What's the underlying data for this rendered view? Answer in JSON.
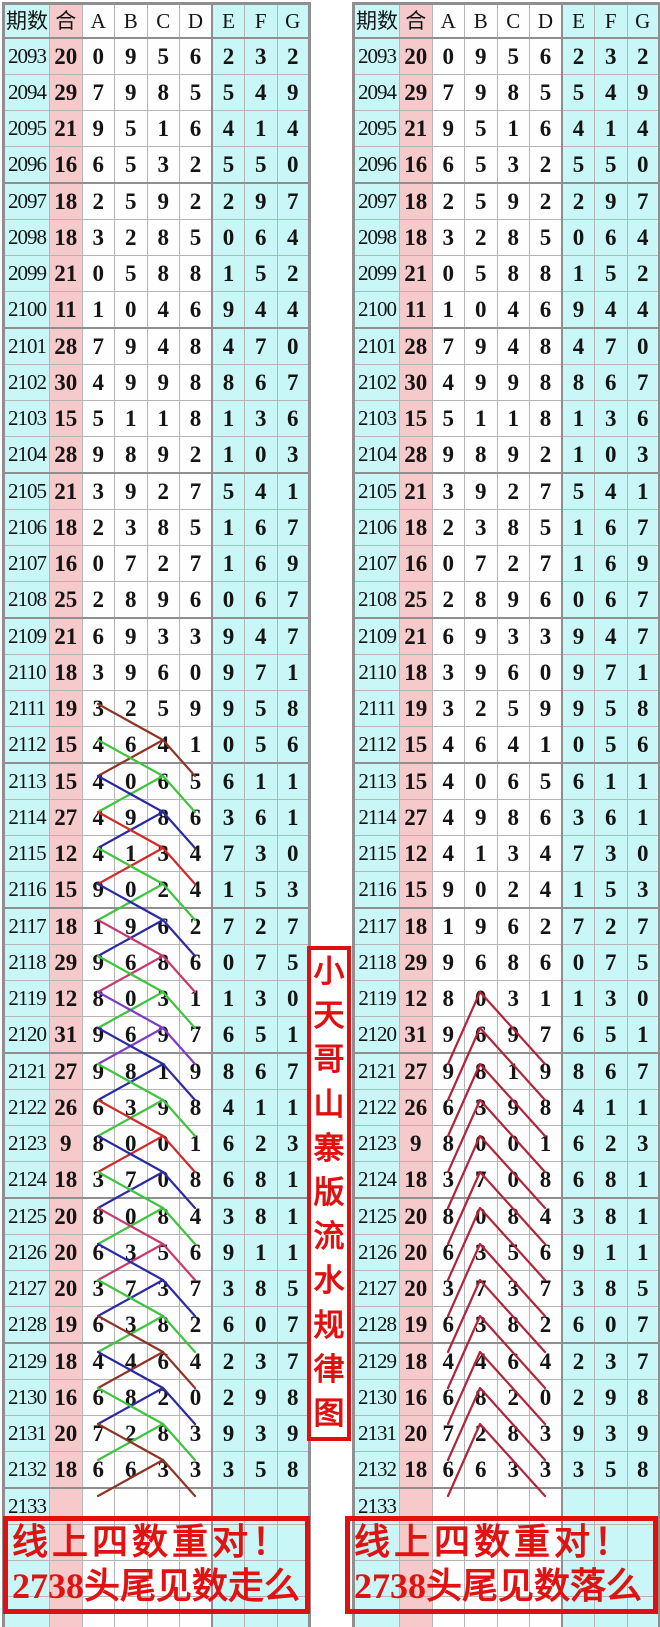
{
  "table": {
    "headers": [
      "期数",
      "合",
      "A",
      "B",
      "C",
      "D",
      "E",
      "F",
      "G"
    ],
    "rows": [
      [
        "2093",
        "20",
        "0",
        "9",
        "5",
        "6",
        "2",
        "3",
        "2"
      ],
      [
        "2094",
        "29",
        "7",
        "9",
        "8",
        "5",
        "5",
        "4",
        "9"
      ],
      [
        "2095",
        "21",
        "9",
        "5",
        "1",
        "6",
        "4",
        "1",
        "4"
      ],
      [
        "2096",
        "16",
        "6",
        "5",
        "3",
        "2",
        "5",
        "5",
        "0"
      ],
      [
        "2097",
        "18",
        "2",
        "5",
        "9",
        "2",
        "2",
        "9",
        "7"
      ],
      [
        "2098",
        "18",
        "3",
        "2",
        "8",
        "5",
        "0",
        "6",
        "4"
      ],
      [
        "2099",
        "21",
        "0",
        "5",
        "8",
        "8",
        "1",
        "5",
        "2"
      ],
      [
        "2100",
        "11",
        "1",
        "0",
        "4",
        "6",
        "9",
        "4",
        "4"
      ],
      [
        "2101",
        "28",
        "7",
        "9",
        "4",
        "8",
        "4",
        "7",
        "0"
      ],
      [
        "2102",
        "30",
        "4",
        "9",
        "9",
        "8",
        "8",
        "6",
        "7"
      ],
      [
        "2103",
        "15",
        "5",
        "1",
        "1",
        "8",
        "1",
        "3",
        "6"
      ],
      [
        "2104",
        "28",
        "9",
        "8",
        "9",
        "2",
        "1",
        "0",
        "3"
      ],
      [
        "2105",
        "21",
        "3",
        "9",
        "2",
        "7",
        "5",
        "4",
        "1"
      ],
      [
        "2106",
        "18",
        "2",
        "3",
        "8",
        "5",
        "1",
        "6",
        "7"
      ],
      [
        "2107",
        "16",
        "0",
        "7",
        "2",
        "7",
        "1",
        "6",
        "9"
      ],
      [
        "2108",
        "25",
        "2",
        "8",
        "9",
        "6",
        "0",
        "6",
        "7"
      ],
      [
        "2109",
        "21",
        "6",
        "9",
        "3",
        "3",
        "9",
        "4",
        "7"
      ],
      [
        "2110",
        "18",
        "3",
        "9",
        "6",
        "0",
        "9",
        "7",
        "1"
      ],
      [
        "2111",
        "19",
        "3",
        "2",
        "5",
        "9",
        "9",
        "5",
        "8"
      ],
      [
        "2112",
        "15",
        "4",
        "6",
        "4",
        "1",
        "0",
        "5",
        "6"
      ],
      [
        "2113",
        "15",
        "4",
        "0",
        "6",
        "5",
        "6",
        "1",
        "1"
      ],
      [
        "2114",
        "27",
        "4",
        "9",
        "8",
        "6",
        "3",
        "6",
        "1"
      ],
      [
        "2115",
        "12",
        "4",
        "1",
        "3",
        "4",
        "7",
        "3",
        "0"
      ],
      [
        "2116",
        "15",
        "9",
        "0",
        "2",
        "4",
        "1",
        "5",
        "3"
      ],
      [
        "2117",
        "18",
        "1",
        "9",
        "6",
        "2",
        "7",
        "2",
        "7"
      ],
      [
        "2118",
        "29",
        "9",
        "6",
        "8",
        "6",
        "0",
        "7",
        "5"
      ],
      [
        "2119",
        "12",
        "8",
        "0",
        "3",
        "1",
        "1",
        "3",
        "0"
      ],
      [
        "2120",
        "31",
        "9",
        "6",
        "9",
        "7",
        "6",
        "5",
        "1"
      ],
      [
        "2121",
        "27",
        "9",
        "8",
        "1",
        "9",
        "8",
        "6",
        "7"
      ],
      [
        "2122",
        "26",
        "6",
        "3",
        "9",
        "8",
        "4",
        "1",
        "1"
      ],
      [
        "2123",
        "9",
        "8",
        "0",
        "0",
        "1",
        "6",
        "2",
        "3"
      ],
      [
        "2124",
        "18",
        "3",
        "7",
        "0",
        "8",
        "6",
        "8",
        "1"
      ],
      [
        "2125",
        "20",
        "8",
        "0",
        "8",
        "4",
        "3",
        "8",
        "1"
      ],
      [
        "2126",
        "20",
        "6",
        "3",
        "5",
        "6",
        "9",
        "1",
        "1"
      ],
      [
        "2127",
        "20",
        "3",
        "7",
        "3",
        "7",
        "3",
        "8",
        "5"
      ],
      [
        "2128",
        "19",
        "6",
        "3",
        "8",
        "2",
        "6",
        "0",
        "7"
      ],
      [
        "2129",
        "18",
        "4",
        "4",
        "6",
        "4",
        "2",
        "3",
        "7"
      ],
      [
        "2130",
        "16",
        "6",
        "8",
        "2",
        "0",
        "2",
        "9",
        "8"
      ],
      [
        "2131",
        "20",
        "7",
        "2",
        "8",
        "3",
        "9",
        "3",
        "9"
      ],
      [
        "2132",
        "18",
        "6",
        "6",
        "3",
        "3",
        "3",
        "5",
        "8"
      ],
      [
        "2133",
        "",
        "",
        "",
        "",
        "",
        "",
        "",
        ""
      ]
    ],
    "filler_row_count": 3
  },
  "banner": {
    "text": "小天哥山寨版流水规律图"
  },
  "left_footer": {
    "line1": "线上四数重对！",
    "line2": "2738头尾见数走么"
  },
  "right_footer": {
    "line1": "线上四数重对！",
    "line2": "2738头尾见数落么"
  },
  "colors": {
    "cyan_column": "#c9f6f6",
    "pink_column": "#f6caca",
    "white_column": "#fffefe",
    "grid": "#b5b5b5",
    "grid_heavy": "#8f8f8f",
    "red_accent": "#e01010",
    "line_darkred": "#8e3526",
    "line_green": "#3ec43e",
    "line_navy": "#2a2aa4",
    "line_red": "#d02a2a",
    "line_crimson": "#c8396f",
    "line_purple": "#7e3ac8",
    "line_right_red": "#b22438"
  },
  "left_lines": [
    {
      "c": "#8e3526",
      "pts": [
        [
          2111,
          "A"
        ],
        [
          2112,
          "C"
        ],
        [
          2113,
          "A"
        ]
      ]
    },
    {
      "c": "#8e3526",
      "pts": [
        [
          2112,
          "C"
        ],
        [
          2113,
          "D"
        ]
      ]
    },
    {
      "c": "#3ec43e",
      "pts": [
        [
          2112,
          "A"
        ],
        [
          2113,
          "C"
        ],
        [
          2114,
          "A"
        ]
      ]
    },
    {
      "c": "#3ec43e",
      "pts": [
        [
          2113,
          "C"
        ],
        [
          2114,
          "D"
        ]
      ]
    },
    {
      "c": "#2a2aa4",
      "pts": [
        [
          2113,
          "A"
        ],
        [
          2114,
          "C"
        ],
        [
          2115,
          "A"
        ]
      ]
    },
    {
      "c": "#2a2aa4",
      "pts": [
        [
          2114,
          "C"
        ],
        [
          2115,
          "D"
        ]
      ]
    },
    {
      "c": "#d02a2a",
      "pts": [
        [
          2114,
          "A"
        ],
        [
          2115,
          "C"
        ],
        [
          2116,
          "A"
        ]
      ]
    },
    {
      "c": "#d02a2a",
      "pts": [
        [
          2115,
          "C"
        ],
        [
          2116,
          "D"
        ]
      ]
    },
    {
      "c": "#3ec43e",
      "pts": [
        [
          2115,
          "A"
        ],
        [
          2116,
          "C"
        ],
        [
          2117,
          "A"
        ]
      ]
    },
    {
      "c": "#3ec43e",
      "pts": [
        [
          2116,
          "C"
        ],
        [
          2117,
          "D"
        ]
      ]
    },
    {
      "c": "#2a2aa4",
      "pts": [
        [
          2116,
          "A"
        ],
        [
          2117,
          "C"
        ],
        [
          2118,
          "A"
        ]
      ]
    },
    {
      "c": "#2a2aa4",
      "pts": [
        [
          2117,
          "C"
        ],
        [
          2118,
          "D"
        ]
      ]
    },
    {
      "c": "#c8396f",
      "pts": [
        [
          2117,
          "A"
        ],
        [
          2118,
          "C"
        ],
        [
          2119,
          "A"
        ]
      ]
    },
    {
      "c": "#c8396f",
      "pts": [
        [
          2118,
          "C"
        ],
        [
          2119,
          "D"
        ]
      ]
    },
    {
      "c": "#3ec43e",
      "pts": [
        [
          2118,
          "A"
        ],
        [
          2119,
          "C"
        ],
        [
          2120,
          "A"
        ]
      ]
    },
    {
      "c": "#3ec43e",
      "pts": [
        [
          2119,
          "C"
        ],
        [
          2120,
          "D"
        ]
      ]
    },
    {
      "c": "#7e3ac8",
      "pts": [
        [
          2119,
          "A"
        ],
        [
          2120,
          "C"
        ],
        [
          2121,
          "A"
        ]
      ]
    },
    {
      "c": "#7e3ac8",
      "pts": [
        [
          2120,
          "C"
        ],
        [
          2121,
          "D"
        ]
      ]
    },
    {
      "c": "#2a2aa4",
      "pts": [
        [
          2120,
          "A"
        ],
        [
          2121,
          "C"
        ],
        [
          2122,
          "A"
        ]
      ]
    },
    {
      "c": "#2a2aa4",
      "pts": [
        [
          2121,
          "C"
        ],
        [
          2122,
          "D"
        ]
      ]
    },
    {
      "c": "#3ec43e",
      "pts": [
        [
          2121,
          "A"
        ],
        [
          2122,
          "C"
        ],
        [
          2123,
          "A"
        ]
      ]
    },
    {
      "c": "#3ec43e",
      "pts": [
        [
          2122,
          "C"
        ],
        [
          2123,
          "D"
        ]
      ]
    },
    {
      "c": "#d02a2a",
      "pts": [
        [
          2122,
          "A"
        ],
        [
          2123,
          "C"
        ],
        [
          2124,
          "A"
        ]
      ]
    },
    {
      "c": "#d02a2a",
      "pts": [
        [
          2123,
          "C"
        ],
        [
          2124,
          "D"
        ]
      ]
    },
    {
      "c": "#2a2aa4",
      "pts": [
        [
          2123,
          "A"
        ],
        [
          2124,
          "C"
        ],
        [
          2125,
          "A"
        ]
      ]
    },
    {
      "c": "#2a2aa4",
      "pts": [
        [
          2124,
          "C"
        ],
        [
          2125,
          "D"
        ]
      ]
    },
    {
      "c": "#3ec43e",
      "pts": [
        [
          2124,
          "A"
        ],
        [
          2125,
          "C"
        ],
        [
          2126,
          "A"
        ]
      ]
    },
    {
      "c": "#3ec43e",
      "pts": [
        [
          2125,
          "C"
        ],
        [
          2126,
          "D"
        ]
      ]
    },
    {
      "c": "#c8396f",
      "pts": [
        [
          2125,
          "A"
        ],
        [
          2126,
          "C"
        ],
        [
          2127,
          "A"
        ]
      ]
    },
    {
      "c": "#c8396f",
      "pts": [
        [
          2126,
          "C"
        ],
        [
          2127,
          "D"
        ]
      ]
    },
    {
      "c": "#2a2aa4",
      "pts": [
        [
          2126,
          "A"
        ],
        [
          2127,
          "C"
        ],
        [
          2128,
          "A"
        ]
      ]
    },
    {
      "c": "#2a2aa4",
      "pts": [
        [
          2127,
          "C"
        ],
        [
          2128,
          "D"
        ]
      ]
    },
    {
      "c": "#3ec43e",
      "pts": [
        [
          2127,
          "A"
        ],
        [
          2128,
          "C"
        ],
        [
          2129,
          "A"
        ]
      ]
    },
    {
      "c": "#3ec43e",
      "pts": [
        [
          2128,
          "C"
        ],
        [
          2129,
          "D"
        ]
      ]
    },
    {
      "c": "#8e3526",
      "pts": [
        [
          2128,
          "A"
        ],
        [
          2129,
          "C"
        ],
        [
          2130,
          "A"
        ]
      ]
    },
    {
      "c": "#8e3526",
      "pts": [
        [
          2129,
          "C"
        ],
        [
          2130,
          "D"
        ]
      ]
    },
    {
      "c": "#2a2aa4",
      "pts": [
        [
          2129,
          "A"
        ],
        [
          2130,
          "C"
        ],
        [
          2131,
          "A"
        ]
      ]
    },
    {
      "c": "#2a2aa4",
      "pts": [
        [
          2130,
          "C"
        ],
        [
          2131,
          "D"
        ]
      ]
    },
    {
      "c": "#3ec43e",
      "pts": [
        [
          2130,
          "A"
        ],
        [
          2131,
          "C"
        ],
        [
          2132,
          "A"
        ]
      ]
    },
    {
      "c": "#3ec43e",
      "pts": [
        [
          2131,
          "C"
        ],
        [
          2132,
          "D"
        ]
      ]
    },
    {
      "c": "#8e3526",
      "pts": [
        [
          2131,
          "A"
        ],
        [
          2132,
          "C"
        ],
        [
          2133,
          "A"
        ]
      ]
    },
    {
      "c": "#8e3526",
      "pts": [
        [
          2132,
          "C"
        ],
        [
          2133,
          "D"
        ]
      ]
    }
  ],
  "right_lines": [
    {
      "c": "#b22438",
      "pts": [
        [
          2121,
          "A"
        ],
        [
          2119,
          "B"
        ],
        [
          2121,
          "D"
        ]
      ]
    },
    {
      "c": "#b22438",
      "pts": [
        [
          2122,
          "A"
        ],
        [
          2120,
          "B"
        ],
        [
          2122,
          "D"
        ]
      ]
    },
    {
      "c": "#b22438",
      "pts": [
        [
          2123,
          "A"
        ],
        [
          2121,
          "B"
        ],
        [
          2123,
          "D"
        ]
      ]
    },
    {
      "c": "#b22438",
      "pts": [
        [
          2124,
          "A"
        ],
        [
          2122,
          "B"
        ],
        [
          2124,
          "D"
        ]
      ]
    },
    {
      "c": "#b22438",
      "pts": [
        [
          2125,
          "A"
        ],
        [
          2123,
          "B"
        ],
        [
          2125,
          "D"
        ]
      ]
    },
    {
      "c": "#b22438",
      "pts": [
        [
          2126,
          "A"
        ],
        [
          2124,
          "B"
        ],
        [
          2126,
          "D"
        ]
      ]
    },
    {
      "c": "#b22438",
      "pts": [
        [
          2127,
          "A"
        ],
        [
          2125,
          "B"
        ],
        [
          2127,
          "D"
        ]
      ]
    },
    {
      "c": "#b22438",
      "pts": [
        [
          2128,
          "A"
        ],
        [
          2126,
          "B"
        ],
        [
          2128,
          "D"
        ]
      ]
    },
    {
      "c": "#b22438",
      "pts": [
        [
          2129,
          "A"
        ],
        [
          2127,
          "B"
        ],
        [
          2129,
          "D"
        ]
      ]
    },
    {
      "c": "#b22438",
      "pts": [
        [
          2130,
          "A"
        ],
        [
          2128,
          "B"
        ],
        [
          2130,
          "D"
        ]
      ]
    },
    {
      "c": "#b22438",
      "pts": [
        [
          2131,
          "A"
        ],
        [
          2129,
          "B"
        ],
        [
          2131,
          "D"
        ]
      ]
    },
    {
      "c": "#b22438",
      "pts": [
        [
          2132,
          "A"
        ],
        [
          2130,
          "B"
        ],
        [
          2132,
          "D"
        ]
      ]
    },
    {
      "c": "#b22438",
      "pts": [
        [
          2133,
          "A"
        ],
        [
          2131,
          "B"
        ],
        [
          2133,
          "D"
        ]
      ]
    }
  ]
}
